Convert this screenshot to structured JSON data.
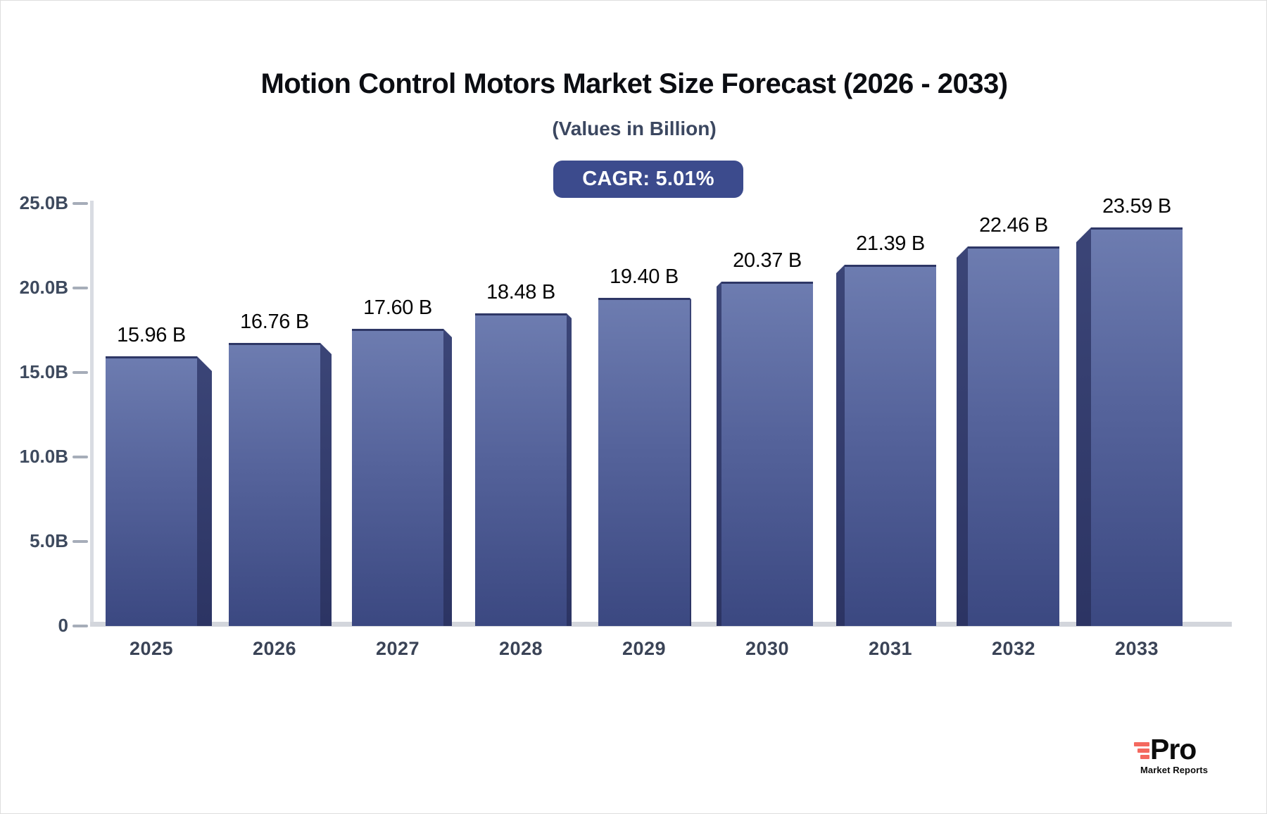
{
  "header": {
    "title": "Motion Control Motors Market Size Forecast (2026 - 2033)",
    "subtitle": "(Values in Billion)"
  },
  "badge": {
    "label": "CAGR: 5.01%",
    "bg_color": "#3c4b8d",
    "text_color": "#ffffff"
  },
  "chart_data": {
    "type": "bar",
    "title": "Motion Control Motors Market Size Forecast (2026 - 2033)",
    "subtitle": "(Values in Billion)",
    "annotation": "CAGR: 5.01%",
    "categories": [
      "2025",
      "2026",
      "2027",
      "2028",
      "2029",
      "2030",
      "2031",
      "2032",
      "2033"
    ],
    "values": [
      15.96,
      16.76,
      17.6,
      18.48,
      19.4,
      20.37,
      21.39,
      22.46,
      23.59
    ],
    "value_labels": [
      "15.96 B",
      "16.76 B",
      "17.60 B",
      "18.48 B",
      "19.40 B",
      "20.37 B",
      "21.39 B",
      "22.46 B",
      "23.59 B"
    ],
    "y_ticks": [
      {
        "label": "25.0B",
        "value": 25
      },
      {
        "label": "20.0B",
        "value": 20
      },
      {
        "label": "15.0B",
        "value": 15
      },
      {
        "label": "10.0B",
        "value": 10
      },
      {
        "label": "5.0B",
        "value": 5
      },
      {
        "label": "0",
        "value": 0
      }
    ],
    "ylim": [
      0,
      25
    ],
    "xlabel": "",
    "ylabel": "",
    "grid": false,
    "legend": false,
    "bar_style": {
      "face_top_color": "#6d7cb0",
      "face_bottom_color": "#3b4881",
      "side_color": "#2e3768",
      "effect": "3d-perspective-center-vanishing"
    }
  },
  "logo": {
    "main": "Pro",
    "sub": "Market Reports",
    "accent_color": "#f4695f"
  }
}
